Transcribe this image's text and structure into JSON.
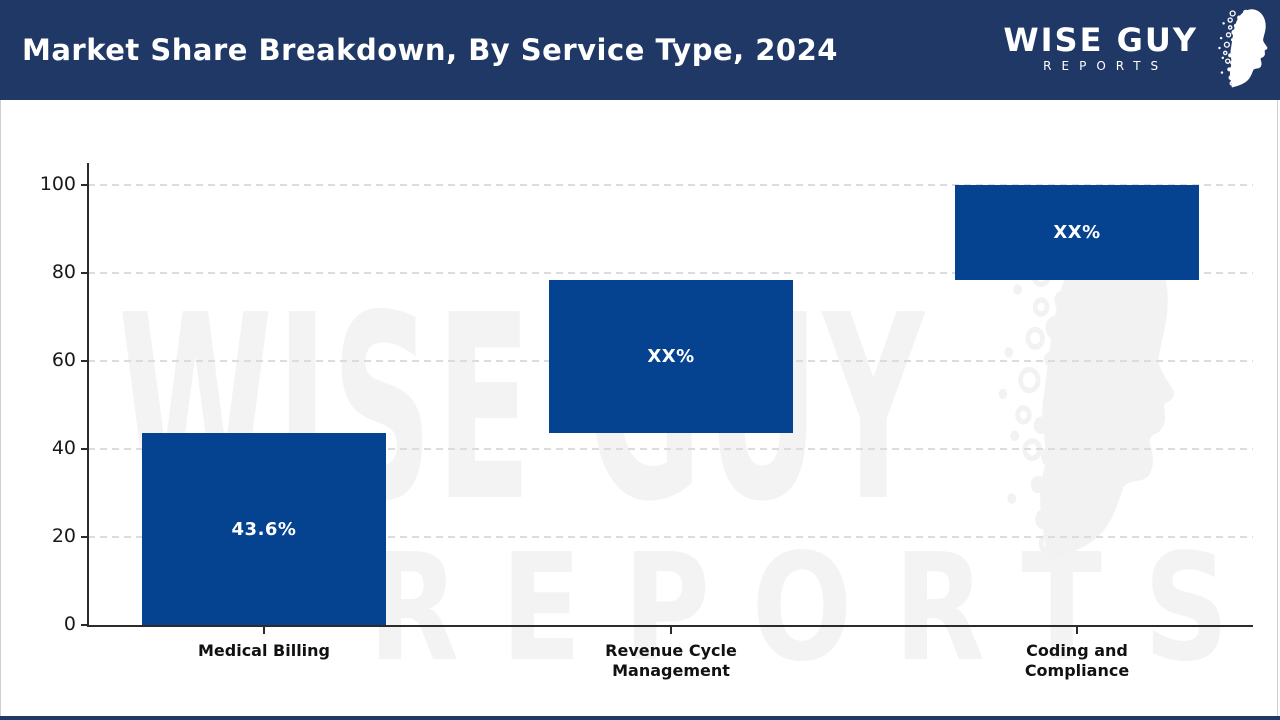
{
  "header": {
    "title": "Market Share Breakdown, By Service Type, 2024",
    "bg_color": "#1f3865",
    "logo": {
      "name": "WISE GUY",
      "sub": "REPORTS"
    }
  },
  "watermark": {
    "line1": "WISE GUY",
    "line2": "REPORTS"
  },
  "chart_data": {
    "type": "bar",
    "variant": "floating-segment-bars (stacked waterfall of market share)",
    "title": "Market Share Breakdown, By Service Type, 2024",
    "categories": [
      "Medical Billing",
      "Revenue Cycle\nManagement",
      "Coding and\nCompliance"
    ],
    "segments": [
      {
        "category": "Medical Billing",
        "start": 0,
        "end": 43.6,
        "label": "43.6%"
      },
      {
        "category": "Revenue Cycle Management",
        "start": 43.6,
        "end": 78.3,
        "label": "XX%"
      },
      {
        "category": "Coding and Compliance",
        "start": 78.3,
        "end": 100,
        "label": "XX%"
      }
    ],
    "xlabel": "",
    "ylabel": "",
    "yticks": [
      0,
      20,
      40,
      60,
      80,
      100
    ],
    "ylim": [
      0,
      105
    ],
    "grid": "horizontal dashed",
    "legend": "none",
    "colors": {
      "bar": "#05428f",
      "bar_label": "#ffffff",
      "grid": "#dcdcdc",
      "axis": "#2b2b2b",
      "tick_label": "#1a1a1a"
    }
  },
  "page": {
    "background": "#ffffff",
    "border_color": "#cfcfcf",
    "footer_color": "#1f3865"
  }
}
